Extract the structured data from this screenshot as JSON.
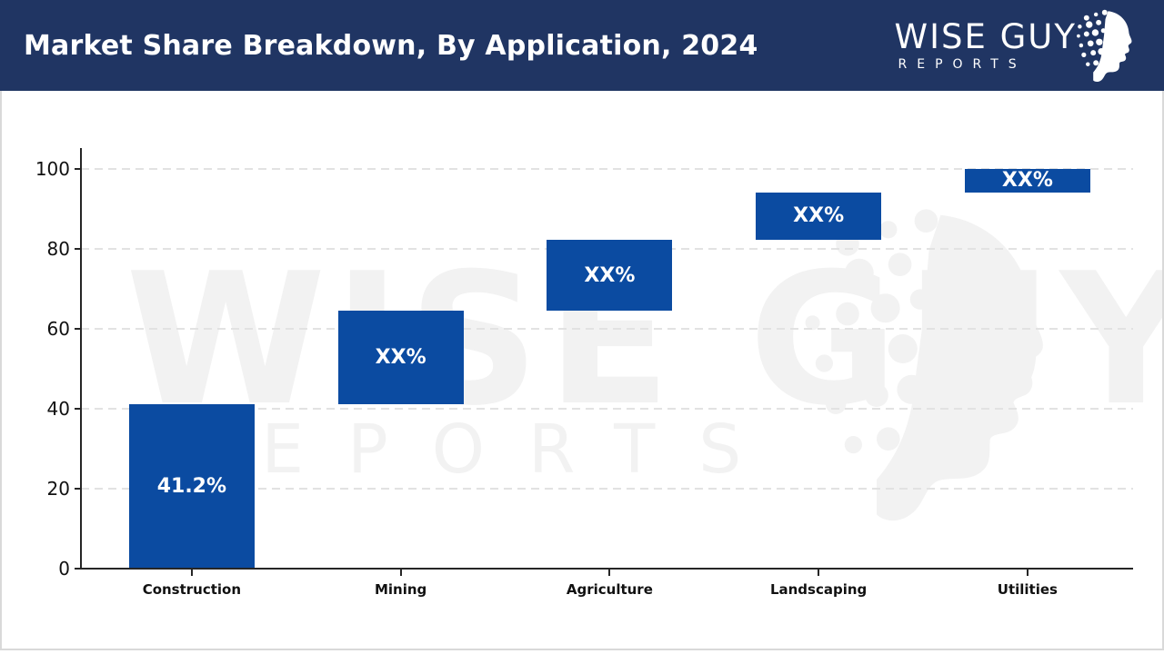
{
  "header": {
    "title": "Market Share Breakdown, By Application, 2024",
    "bg_color": "#203563",
    "logo": {
      "line1": "WISE GUY",
      "line2": "REPORTS"
    }
  },
  "watermark": {
    "line1": "WISE GUY",
    "line2": "REPORTS"
  },
  "chart_data": {
    "type": "bar",
    "subtype": "waterfall",
    "title": "Market Share Breakdown, By Application, 2024",
    "categories": [
      "Construction",
      "Mining",
      "Agriculture",
      "Landscaping",
      "Utilities"
    ],
    "segments": [
      {
        "category": "Construction",
        "start": 0,
        "end": 41.2,
        "label": "41.2%"
      },
      {
        "category": "Mining",
        "start": 41.2,
        "end": 64.5,
        "label": "XX%"
      },
      {
        "category": "Agriculture",
        "start": 64.5,
        "end": 82.3,
        "label": "XX%"
      },
      {
        "category": "Landscaping",
        "start": 82.3,
        "end": 94.2,
        "label": "XX%"
      },
      {
        "category": "Utilities",
        "start": 94.2,
        "end": 100,
        "label": "XX%"
      }
    ],
    "yticks": [
      0,
      20,
      40,
      60,
      80,
      100
    ],
    "ylim": [
      0,
      105
    ],
    "xlabel": "",
    "ylabel": "",
    "grid": "dashed-horizontal",
    "legend": "none",
    "bar_color": "#0b4ba1",
    "label_color": "#ffffff"
  }
}
